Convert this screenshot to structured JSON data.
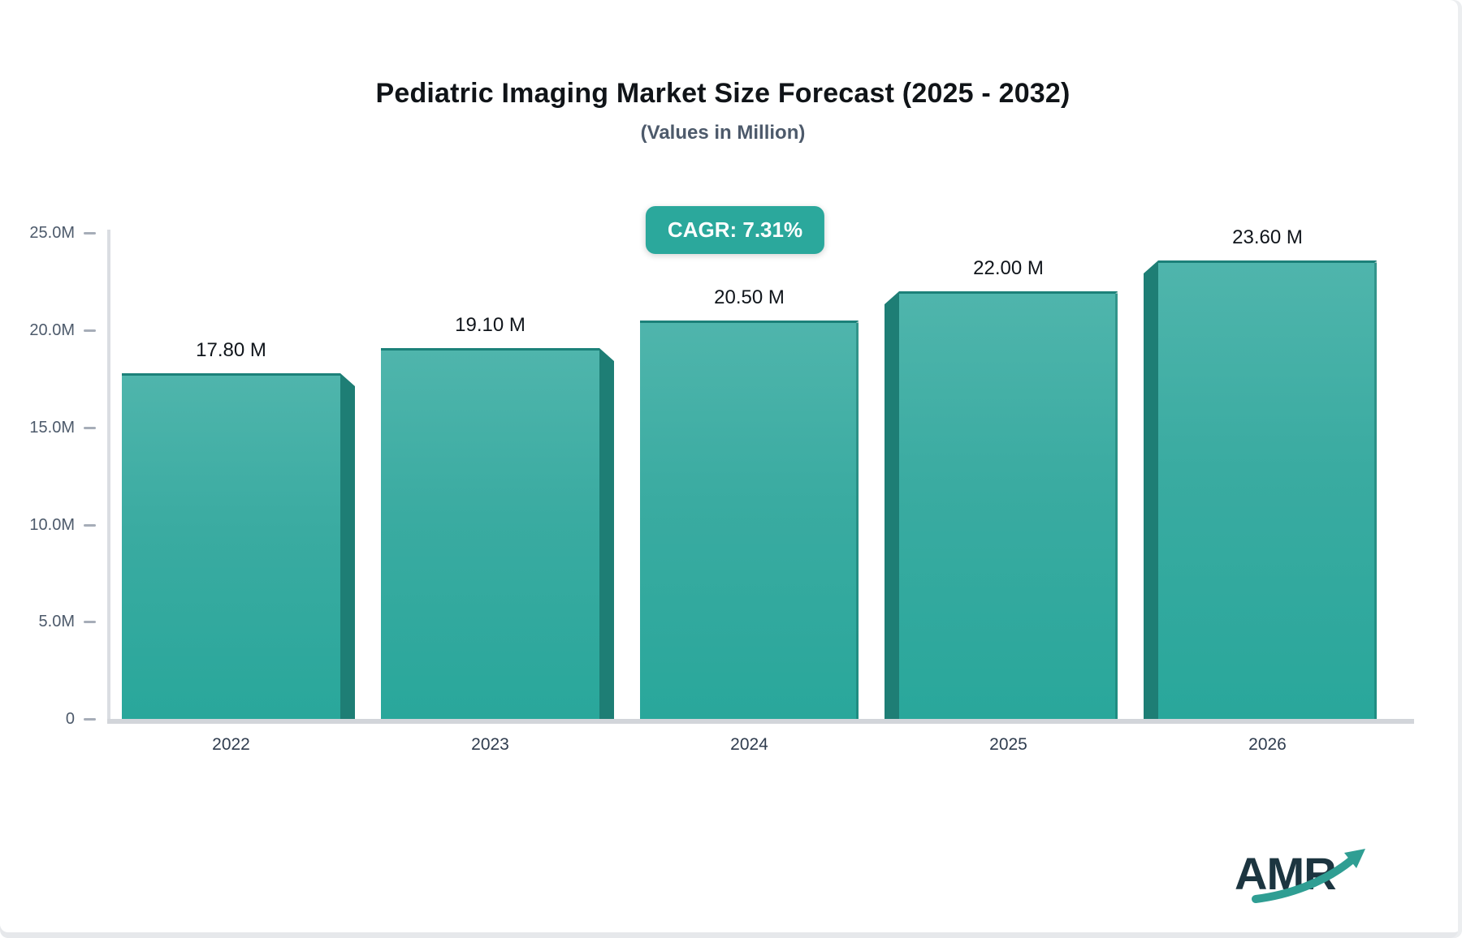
{
  "chart_data": {
    "type": "bar",
    "title": "Pediatric Imaging Market Size Forecast (2025 - 2032)",
    "subtitle": "(Values in Million)",
    "annotation_badge": "CAGR: 7.31%",
    "categories": [
      "2022",
      "2023",
      "2024",
      "2025",
      "2026"
    ],
    "values": [
      17.8,
      19.1,
      20.5,
      22.0,
      23.6
    ],
    "value_labels": [
      "17.80 M",
      "19.10 M",
      "20.50 M",
      "22.00 M",
      "23.60 M"
    ],
    "yticks": [
      {
        "value": 0,
        "label": "0"
      },
      {
        "value": 5,
        "label": "5.0M"
      },
      {
        "value": 10,
        "label": "10.0M"
      },
      {
        "value": 15,
        "label": "15.0M"
      },
      {
        "value": 20,
        "label": "20.0M"
      },
      {
        "value": 25,
        "label": "25.0M"
      }
    ],
    "ylim": [
      0,
      25
    ],
    "grid": false,
    "legend": false,
    "xlabel": "",
    "ylabel": "",
    "colors": {
      "bar_top": "#4fb5ac",
      "bar_bottom": "#29a79b",
      "bar_side": "#1e7e75",
      "badge_bg": "#2ba89c",
      "badge_text": "#ffffff",
      "axis": "#d2d5da",
      "tick_text": "#4d5a6b"
    }
  },
  "logo": {
    "text": "AMR",
    "icon": "growth-arrow-icon",
    "text_color": "#1c3540",
    "arrow_color": "#2f9e93"
  }
}
